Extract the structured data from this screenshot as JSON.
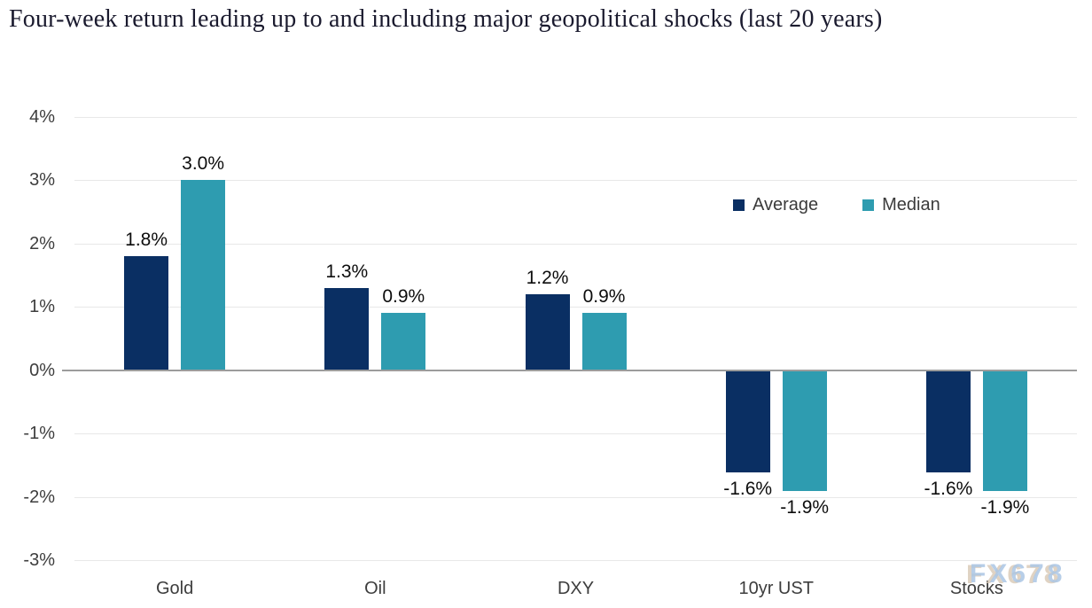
{
  "chart_data": {
    "type": "bar",
    "title": "Four-week return leading up to and including major geopolitical shocks (last 20 years)",
    "categories": [
      "Gold",
      "Oil",
      "DXY",
      "10yr UST",
      "Stocks"
    ],
    "series": [
      {
        "name": "Average",
        "color": "#0a2f63",
        "values": [
          1.8,
          1.3,
          1.2,
          -1.6,
          -1.6
        ]
      },
      {
        "name": "Median",
        "color": "#2e9cb0",
        "values": [
          3.0,
          0.9,
          0.9,
          -1.9,
          -1.9
        ]
      }
    ],
    "value_labels": {
      "Average": [
        "1.8%",
        "1.3%",
        "1.2%",
        "-1.6%",
        "-1.6%"
      ],
      "Median": [
        "3.0%",
        "0.9%",
        "0.9%",
        "-1.9%",
        "-1.9%"
      ]
    },
    "y_tick_labels": [
      "4%",
      "3%",
      "2%",
      "1%",
      "0%",
      "-1%",
      "-2%",
      "-3%"
    ],
    "y_tick_values": [
      4,
      3,
      2,
      1,
      0,
      -1,
      -2,
      -3
    ],
    "ylim": [
      -3,
      4
    ],
    "grid": true,
    "legend_position": "upper-right",
    "xlabel": "",
    "ylabel": ""
  },
  "watermark": "FX678",
  "colors": {
    "average_bar": "#0a2f63",
    "median_bar": "#2e9cb0",
    "gridline": "#e8e8e8",
    "zero_line": "#9c9c9c",
    "axis_text": "#3d3d3d",
    "title_text": "#1a1a2e",
    "value_label_text": "#0d0d0d",
    "watermark_blue": "#aac6e4",
    "watermark_shadow": "#d8c8b4"
  }
}
